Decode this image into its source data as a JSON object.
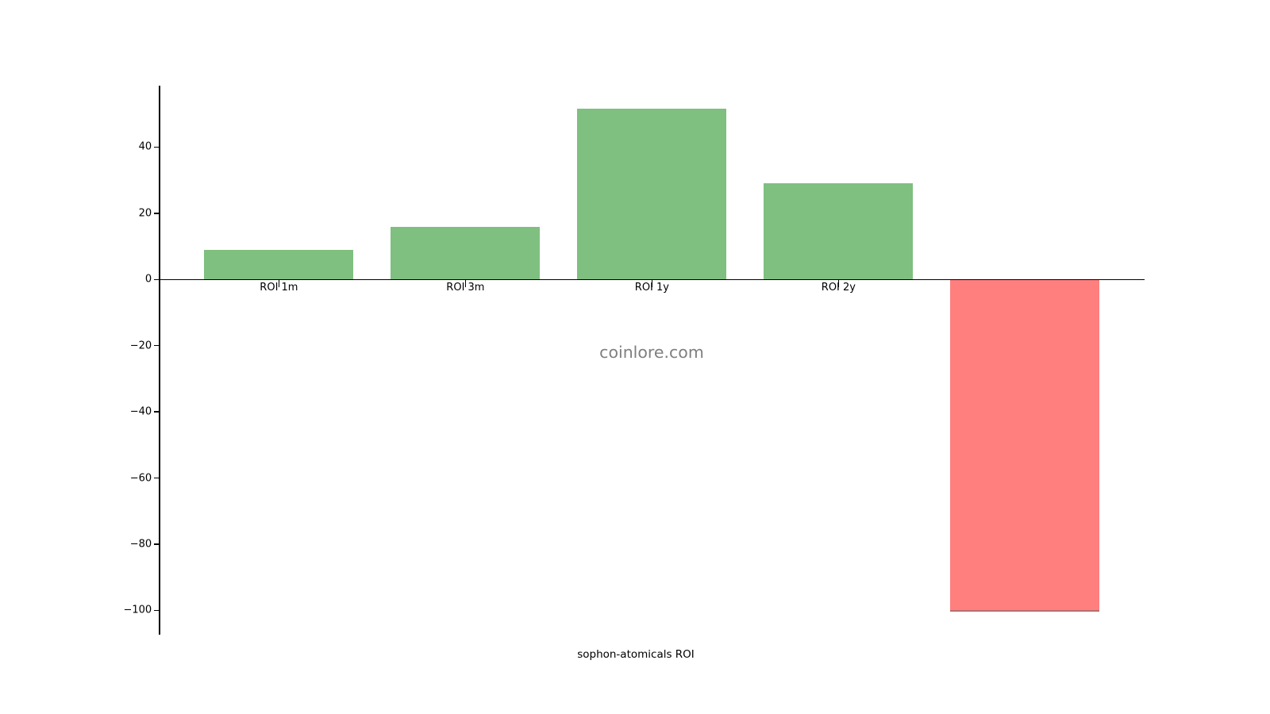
{
  "page": {
    "background_color": "#ffffff"
  },
  "title": {
    "text": "sophon-atomicals ROI"
  },
  "watermark": {
    "text": "coinlore.com",
    "color": "#7f7f7f"
  },
  "chart_data": {
    "type": "bar",
    "title": "sophon-atomicals ROI",
    "categories": [
      "ROI 1m",
      "ROI 3m",
      "ROI 1y",
      "ROI 2y",
      ""
    ],
    "values": [
      9,
      16,
      51.7,
      29,
      -100
    ],
    "bar_colors": [
      "#7fbf7f",
      "#7fbf7f",
      "#7fbf7f",
      "#7fbf7f",
      "#ff7f7f"
    ],
    "positive_color": "#7fbf7f",
    "negative_color": "#ff7f7f",
    "yticks": [
      40,
      20,
      0,
      -20,
      -40,
      -60,
      -80,
      -100
    ],
    "ytick_labels": [
      "40",
      "20",
      "0",
      "−20",
      "−40",
      "−60",
      "−80",
      "−100"
    ],
    "ylim": [
      -107.6,
      59.1
    ],
    "xlabel": "",
    "ylabel": "",
    "grid": false,
    "legend": null,
    "watermark": "coinlore.com",
    "axis_color": "#000000"
  }
}
